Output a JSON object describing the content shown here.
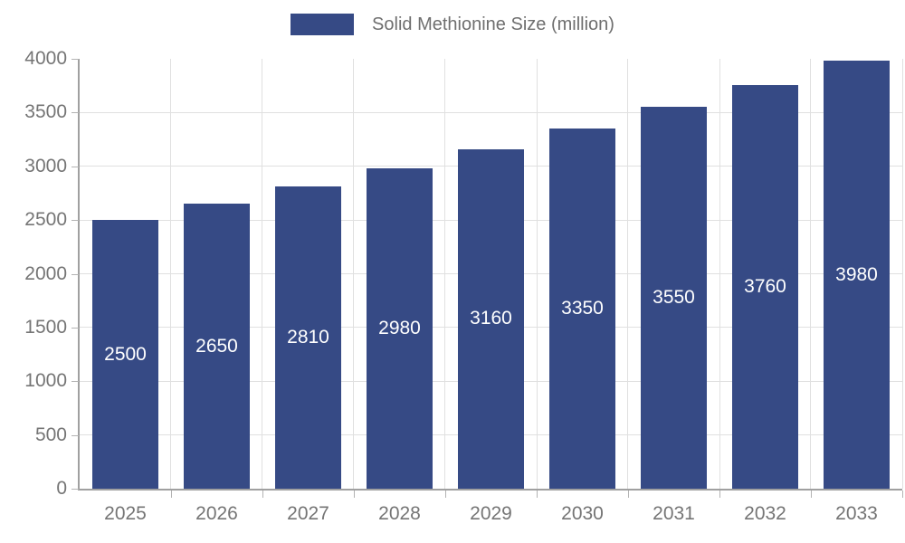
{
  "chart_data": {
    "type": "bar",
    "title": "",
    "series_name": "Solid Methionine Size (million)",
    "categories": [
      "2025",
      "2026",
      "2027",
      "2028",
      "2029",
      "2030",
      "2031",
      "2032",
      "2033"
    ],
    "values": [
      2500,
      2650,
      2810,
      2980,
      3160,
      3350,
      3550,
      3760,
      3980
    ],
    "value_labels": [
      "2500",
      "2650",
      "2810",
      "2980",
      "3160",
      "3350",
      "3550",
      "3760",
      "3980"
    ],
    "xlabel": "",
    "ylabel": "",
    "ylim": [
      0,
      4000
    ],
    "yticks": [
      0,
      500,
      1000,
      1500,
      2000,
      2500,
      3000,
      3500,
      4000
    ],
    "grid": "horizontal and vertical, light gray",
    "legend_position": "top-center",
    "colors": {
      "bar": "#364a85",
      "bar_label": "#ffffff",
      "axis_text": "#757575",
      "legend_text": "#6f6f6f",
      "gridline": "#e0e0e0",
      "axis_line": "#a0a0a0",
      "background": "#ffffff"
    }
  }
}
